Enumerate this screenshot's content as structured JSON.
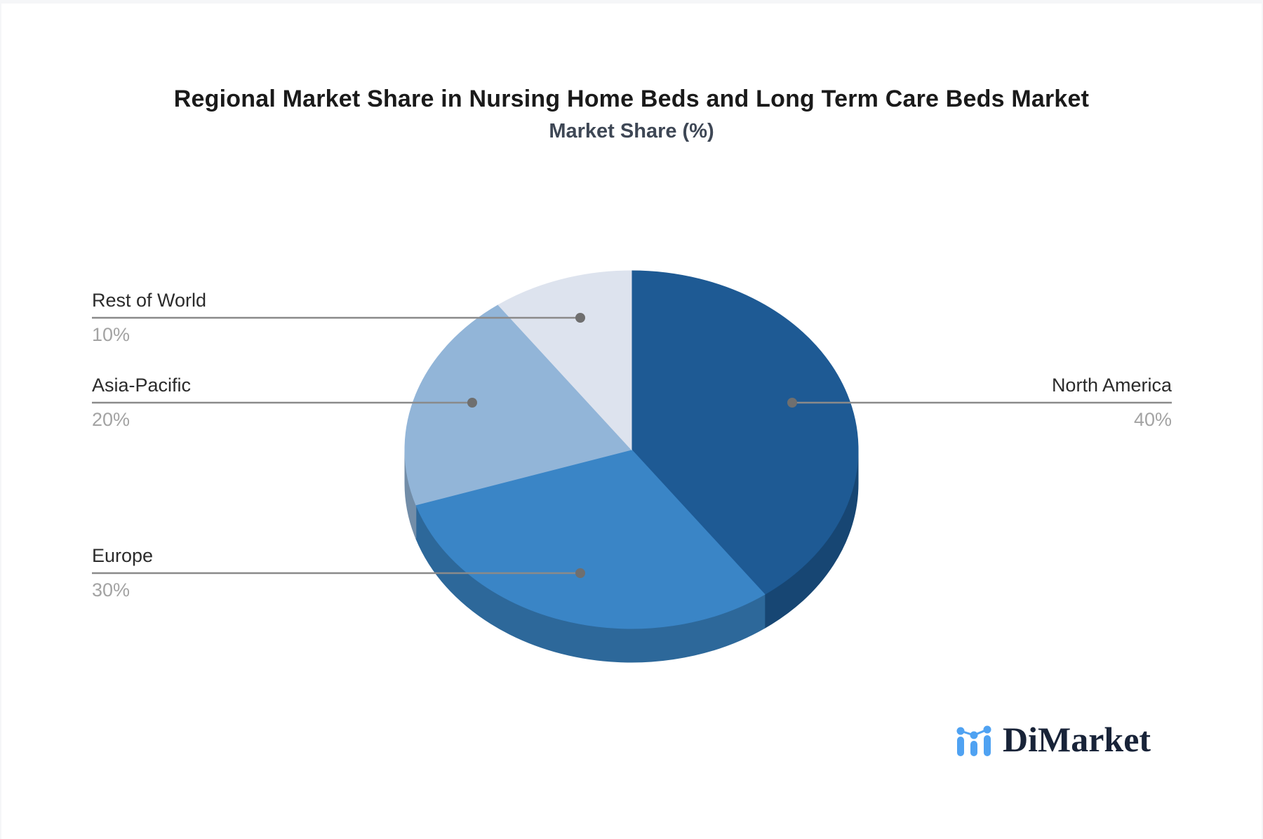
{
  "page": {
    "background": "#ffffff",
    "frame_color": "#f5f6f8"
  },
  "chart_data": {
    "type": "pie",
    "style": "3d",
    "title": "Regional Market Share in Nursing Home Beds and Long Term Care Beds Market",
    "subtitle": "Market Share (%)",
    "unit": "%",
    "start_angle_deg": 0,
    "direction": "clockwise",
    "slices": [
      {
        "label": "North America",
        "value": 40,
        "display": "40%",
        "color": "#1E5A94"
      },
      {
        "label": "Europe",
        "value": 30,
        "display": "30%",
        "color": "#3A85C6"
      },
      {
        "label": "Asia-Pacific",
        "value": 20,
        "display": "20%",
        "color": "#92B5D8"
      },
      {
        "label": "Rest of World",
        "value": 10,
        "display": "10%",
        "color": "#DDE3EE"
      }
    ],
    "legend_position": "callout-labels",
    "grid": "off"
  },
  "styles": {
    "title_color": "#1a1a1a",
    "subtitle_color": "#3E4755",
    "label_text_color": "#2b2b2b",
    "value_text_color": "#a3a3a3",
    "connector_color": "#8a8a8a",
    "connector_dot_color": "#6f6f6f"
  },
  "logo": {
    "text": "DiMarket",
    "text_color": "#182338",
    "icon": "bar-chart-with-trend-dots-icon",
    "icon_color": "#4FA2F2"
  }
}
